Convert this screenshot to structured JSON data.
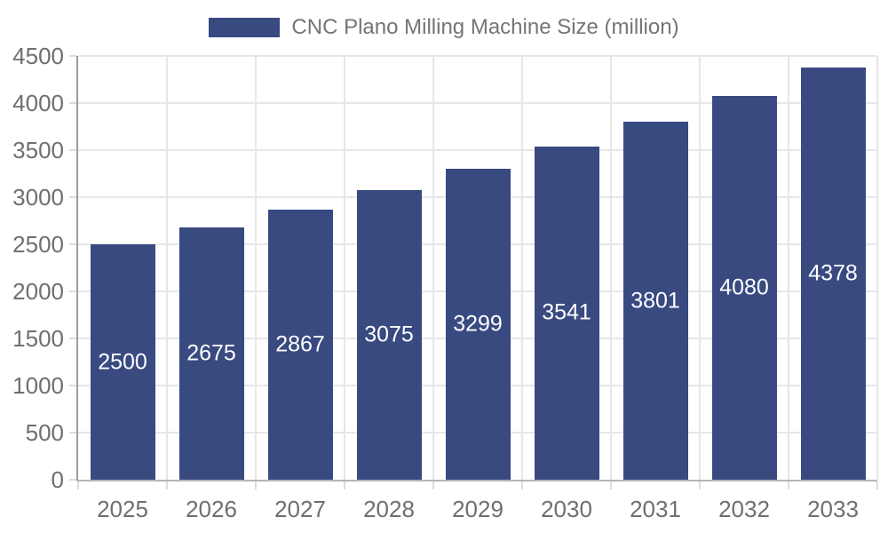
{
  "legend": {
    "items": [
      {
        "label": "CNC Plano Milling Machine Size (million)",
        "color": "#394A81"
      }
    ]
  },
  "colors": {
    "bar": "#394A81",
    "bar_label_text": "#FFFFFF",
    "grid_line": "#E7E7E7",
    "y_axis_line": "#9C9C9C",
    "x_axis_line": "#B5B5B5",
    "tick_line": "#DCDCDC",
    "axis_text": "#6F6F6F",
    "legend_text": "#757575",
    "background": "#FFFFFF"
  },
  "chart_data": {
    "type": "bar",
    "title": "CNC Plano Milling Machine Size (million)",
    "categories": [
      "2025",
      "2026",
      "2027",
      "2028",
      "2029",
      "2030",
      "2031",
      "2032",
      "2033"
    ],
    "values": [
      2500,
      2675,
      2867,
      3075,
      3299,
      3541,
      3801,
      4080,
      4378
    ],
    "series": [
      {
        "name": "CNC Plano Milling Machine Size (million)",
        "values": [
          2500,
          2675,
          2867,
          3075,
          3299,
          3541,
          3801,
          4080,
          4378
        ]
      }
    ],
    "xlabel": "",
    "ylabel": "",
    "ylim": [
      0,
      4500
    ],
    "yticks": [
      0,
      500,
      1000,
      1500,
      2000,
      2500,
      3000,
      3500,
      4000,
      4500
    ],
    "grid": true,
    "grid_vertical": true,
    "legend_position": "top-center",
    "bar_labels_inside": true
  }
}
